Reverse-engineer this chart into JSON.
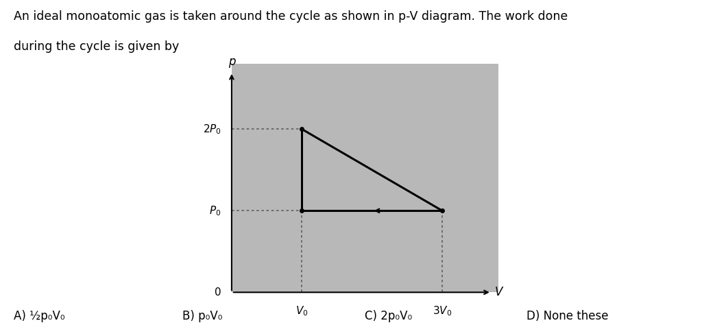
{
  "title_line1": "An ideal monoatomic gas is taken around the cycle as shown in p-V diagram. The work done",
  "title_line2": "during the cycle is given by",
  "title_fontsize": 12.5,
  "outer_bg": "#ffffff",
  "graph_bg": "#b8b8b8",
  "line_color": "#000000",
  "dotted_color": "#666666",
  "xlim": [
    0,
    3.8
  ],
  "ylim": [
    0,
    2.8
  ],
  "answer_A": "A) ½p₀V₀",
  "answer_B": "B) p₀V₀",
  "answer_C": "C) 2p₀V₀",
  "answer_D": "D) None these",
  "answer_fontsize": 12
}
